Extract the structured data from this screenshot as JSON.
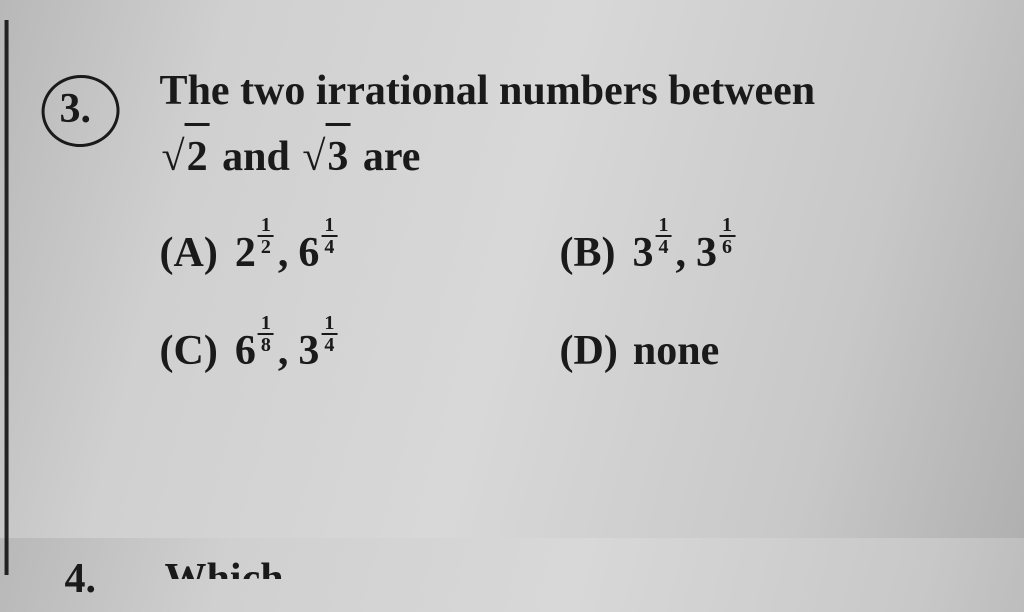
{
  "question": {
    "number": "3.",
    "text_line1": "The two irrational numbers between",
    "sqrt1_radicand": "2",
    "connector": " and ",
    "sqrt2_radicand": "3",
    "text_line2_end": " are"
  },
  "options": {
    "A": {
      "label": "(A)",
      "terms": [
        {
          "base": "2",
          "exp_num": "1",
          "exp_den": "2"
        },
        {
          "base": "6",
          "exp_num": "1",
          "exp_den": "4"
        }
      ]
    },
    "B": {
      "label": "(B)",
      "terms": [
        {
          "base": "3",
          "exp_num": "1",
          "exp_den": "4"
        },
        {
          "base": "3",
          "exp_num": "1",
          "exp_den": "6"
        }
      ]
    },
    "C": {
      "label": "(C)",
      "terms": [
        {
          "base": "6",
          "exp_num": "1",
          "exp_den": "8"
        },
        {
          "base": "3",
          "exp_num": "1",
          "exp_den": "4"
        }
      ]
    },
    "D": {
      "label": "(D)",
      "text": "none"
    }
  },
  "next_question": {
    "number": "4.",
    "partial_text": "Which"
  },
  "style": {
    "text_color": "#1a1a1a",
    "bg_gradient_start": "#b8b8b8",
    "bg_gradient_end": "#b0b0b0",
    "font_size_main": 42,
    "font_size_exp": 20,
    "circle_border_width": 3
  }
}
